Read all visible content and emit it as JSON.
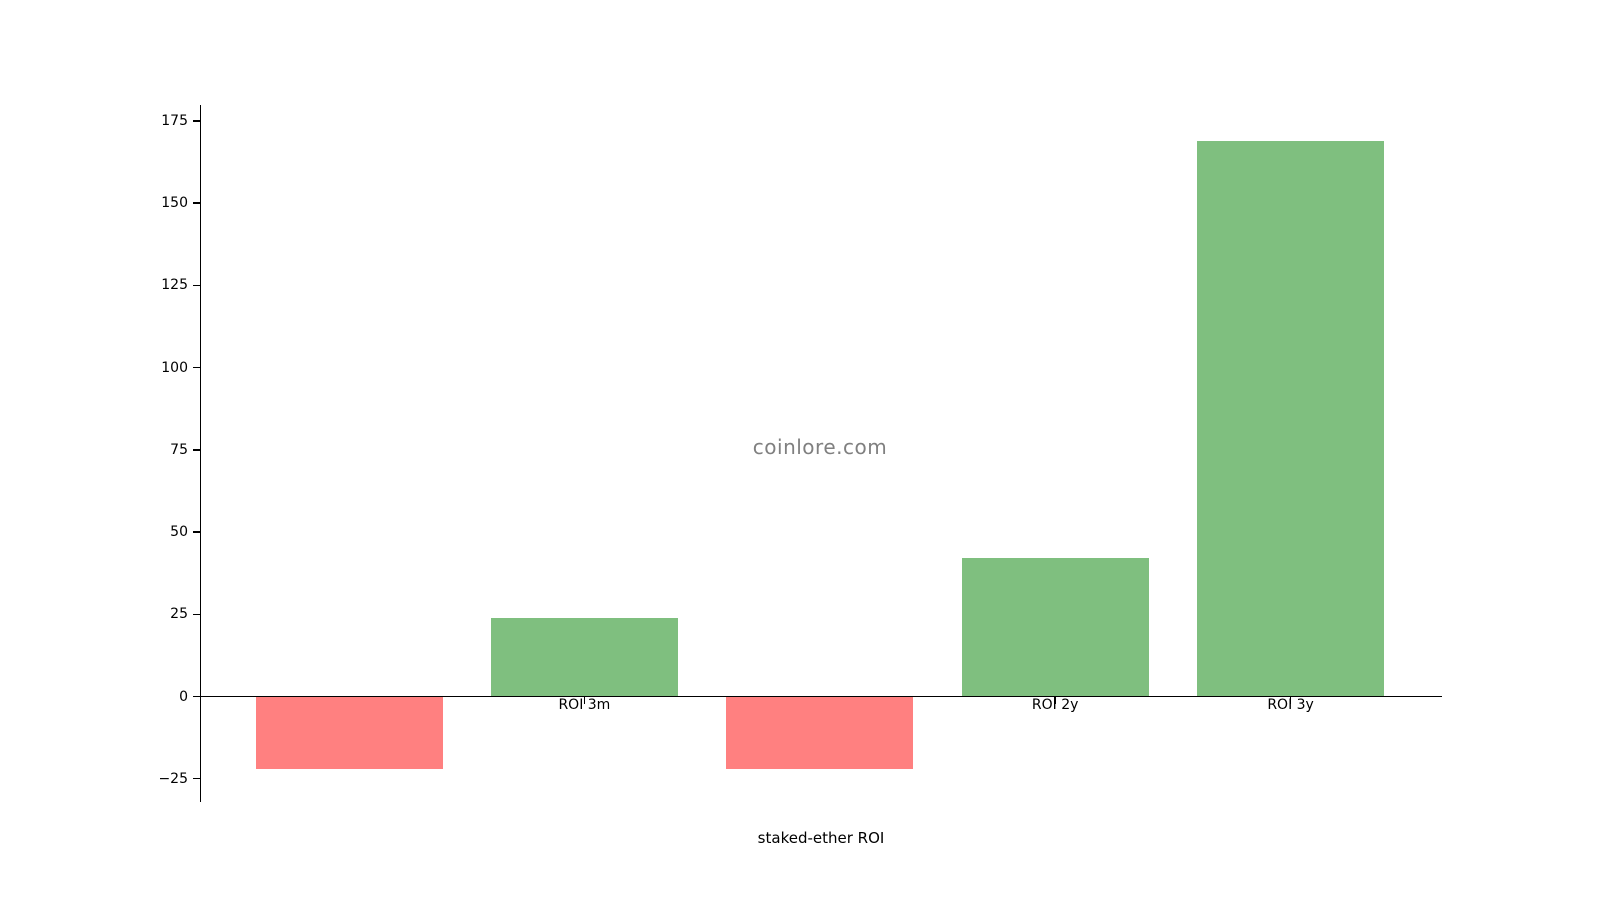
{
  "watermark": {
    "text": "coinlore.com",
    "color": "#808080"
  },
  "chart_data": {
    "type": "bar",
    "title": "staked-ether ROI",
    "categories": [
      "",
      "ROI 3m",
      "",
      "ROI 2y",
      "ROI 3y"
    ],
    "values": [
      -22,
      24,
      -22,
      42,
      169
    ],
    "positive_color": "#7fbf7f",
    "negative_color": "#ff8080",
    "axis_color": "#000000",
    "text_color": "#000000",
    "yticks": [
      {
        "value": 175,
        "label": "175"
      },
      {
        "value": 150,
        "label": "150"
      },
      {
        "value": 125,
        "label": "125"
      },
      {
        "value": 100,
        "label": "100"
      },
      {
        "value": 75,
        "label": "75"
      },
      {
        "value": 50,
        "label": "50"
      },
      {
        "value": 25,
        "label": "25"
      },
      {
        "value": 0,
        "label": "0"
      },
      {
        "value": -25,
        "label": "−25"
      }
    ],
    "ylim": [
      -32,
      179
    ],
    "xlabel": "",
    "ylabel": "",
    "grid": false,
    "legend": "none"
  }
}
